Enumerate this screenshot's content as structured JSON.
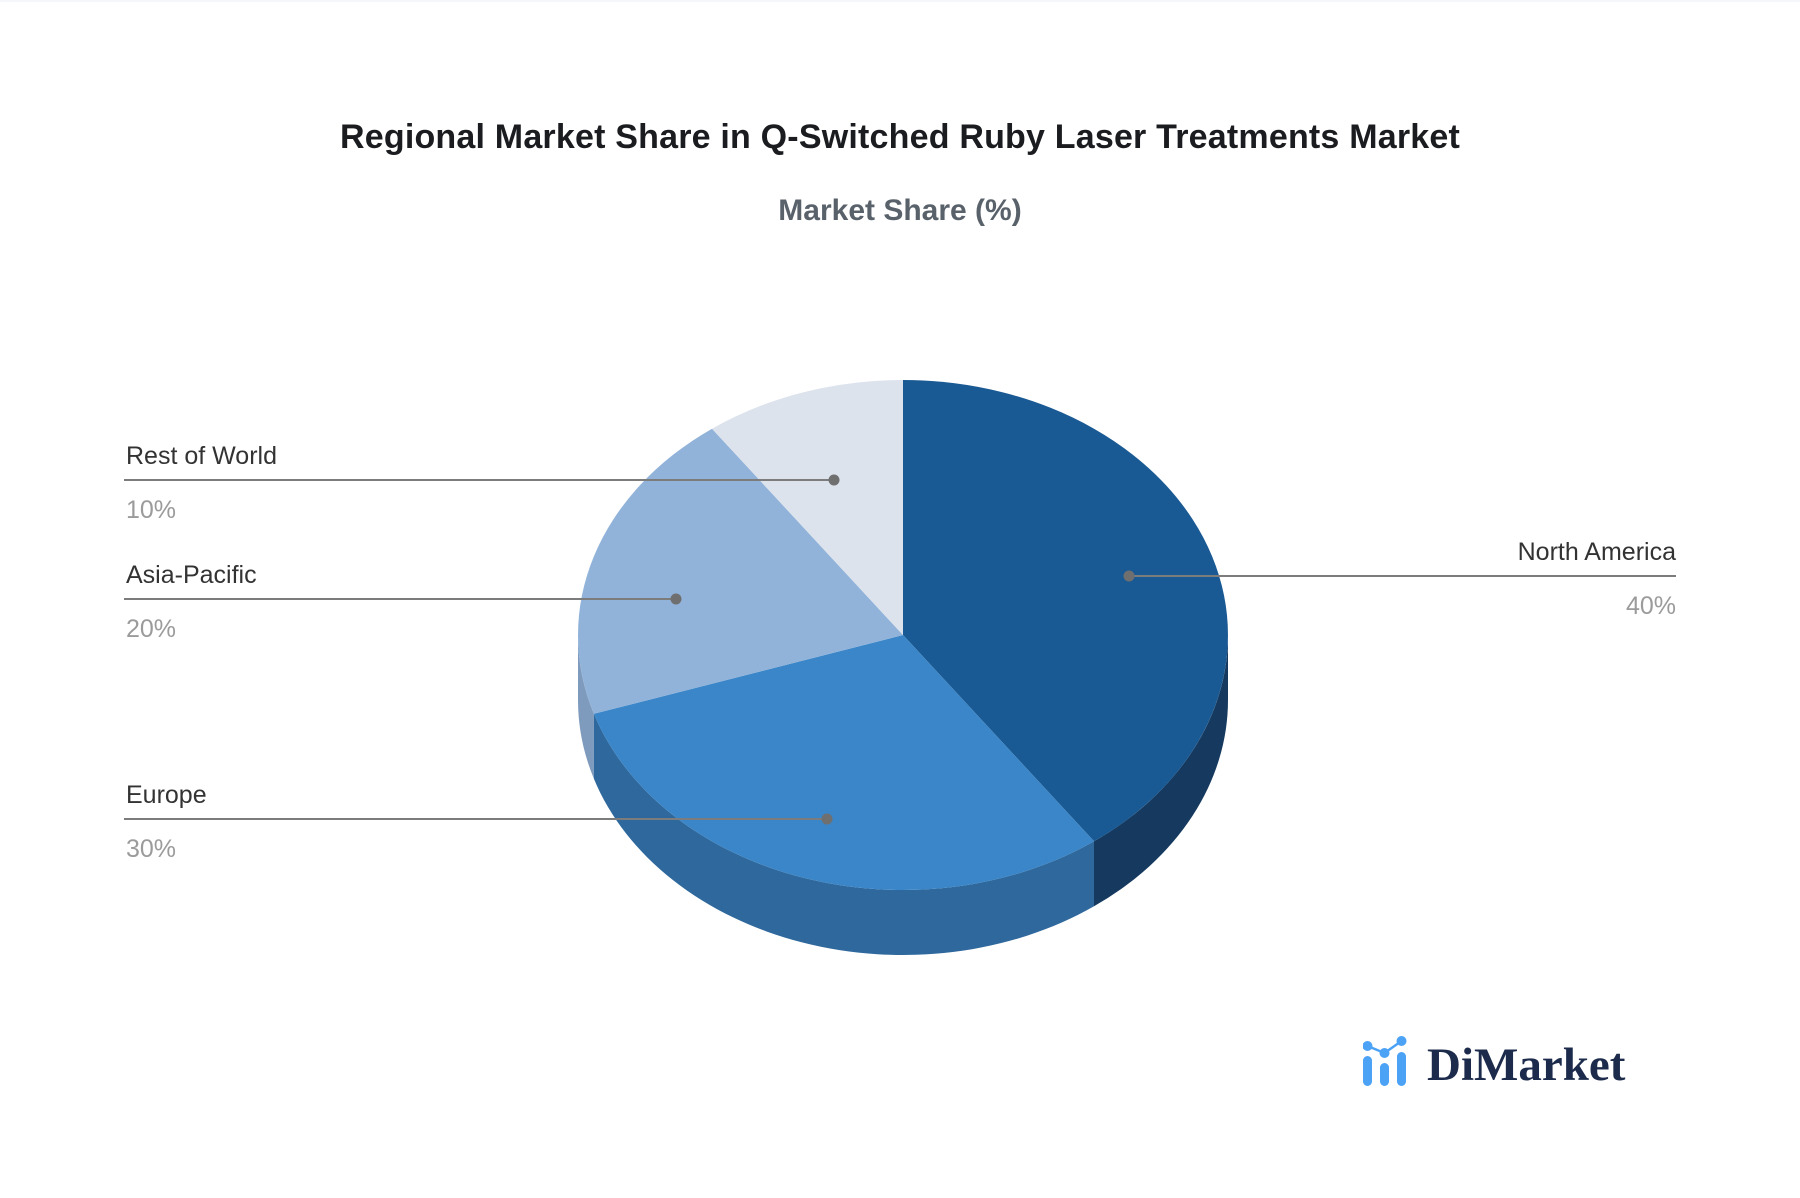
{
  "header": {
    "title": "Regional Market Share in Q-Switched Ruby Laser Treatments Market",
    "subtitle": "Market Share (%)"
  },
  "chart_data": {
    "type": "pie",
    "style": "3d",
    "title": "Regional Market Share in Q-Switched Ruby Laser Treatments Market",
    "subtitle": "Market Share (%)",
    "unit": "%",
    "direction": "clockwise",
    "start_angle": "12 o'clock",
    "legend": "none",
    "label_style": "leader-line callouts with region name above line and percent below",
    "categories": [
      "North America",
      "Europe",
      "Asia-Pacific",
      "Rest of World"
    ],
    "values": [
      40,
      30,
      20,
      10
    ],
    "slices": [
      {
        "label": "North America",
        "value": 40,
        "pct_label": "40%",
        "color": "#1A5A94",
        "side_color": "#163A5F"
      },
      {
        "label": "Europe",
        "value": 30,
        "pct_label": "30%",
        "color": "#3A86C8",
        "side_color": "#2E689D"
      },
      {
        "label": "Asia-Pacific",
        "value": 20,
        "pct_label": "20%",
        "color": "#92B3D9",
        "side_color": "#7E9BBE"
      },
      {
        "label": "Rest of World",
        "value": 10,
        "pct_label": "10%",
        "color": "#DCE3ED",
        "side_color": "#C3CDDB"
      }
    ]
  },
  "branding": {
    "logo_text": "DiMarket",
    "logo_text_color": "#1c2b4b",
    "logo_icon_color": "#4ca2f5"
  },
  "colors": {
    "leader_line": "#7c7c7c",
    "leader_dot": "#6f6f6f",
    "label_text": "#333333",
    "pct_text": "#9b9b9b",
    "title": "#1a1c1f",
    "subtitle": "#59626b"
  }
}
